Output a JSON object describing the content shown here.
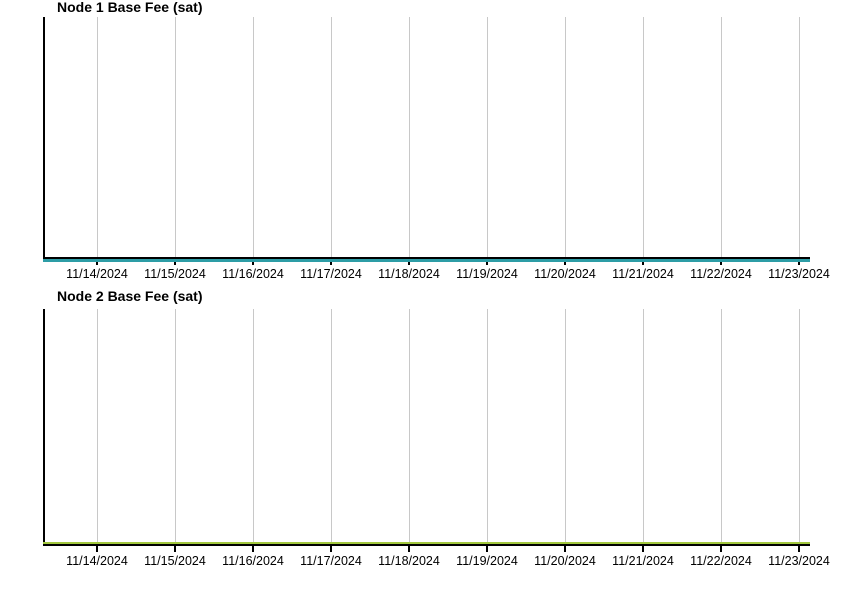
{
  "style": {
    "background": "#ffffff",
    "axis_color": "#000000",
    "gridline_color": "#c8c8c8",
    "label_color": "#000000"
  },
  "chart_data": [
    {
      "type": "line",
      "title": "Node 1 Base Fee (sat)",
      "x": [
        "11/14/2024",
        "11/15/2024",
        "11/16/2024",
        "11/17/2024",
        "11/18/2024",
        "11/19/2024",
        "11/20/2024",
        "11/21/2024",
        "11/22/2024",
        "11/23/2024"
      ],
      "series": [
        {
          "name": "Node 1 Base Fee (sat)",
          "color": "#2d9da6",
          "values": [
            0,
            0,
            0,
            0,
            0,
            0,
            0,
            0,
            0,
            0
          ]
        }
      ],
      "xlabel": "",
      "ylabel": "",
      "y_tick_labels_visible": false,
      "grid": "vertical-only",
      "legend": "none",
      "title_position": "top-left"
    },
    {
      "type": "line",
      "title": "Node 2 Base Fee (sat)",
      "x": [
        "11/14/2024",
        "11/15/2024",
        "11/16/2024",
        "11/17/2024",
        "11/18/2024",
        "11/19/2024",
        "11/20/2024",
        "11/21/2024",
        "11/22/2024",
        "11/23/2024"
      ],
      "series": [
        {
          "name": "Node 2 Base Fee (sat)",
          "color": "#a2c83e",
          "values": [
            0,
            0,
            0,
            0,
            0,
            0,
            0,
            0,
            0,
            0
          ]
        }
      ],
      "xlabel": "",
      "ylabel": "",
      "y_tick_labels_visible": false,
      "grid": "vertical-only",
      "legend": "none",
      "title_position": "top-left"
    }
  ]
}
